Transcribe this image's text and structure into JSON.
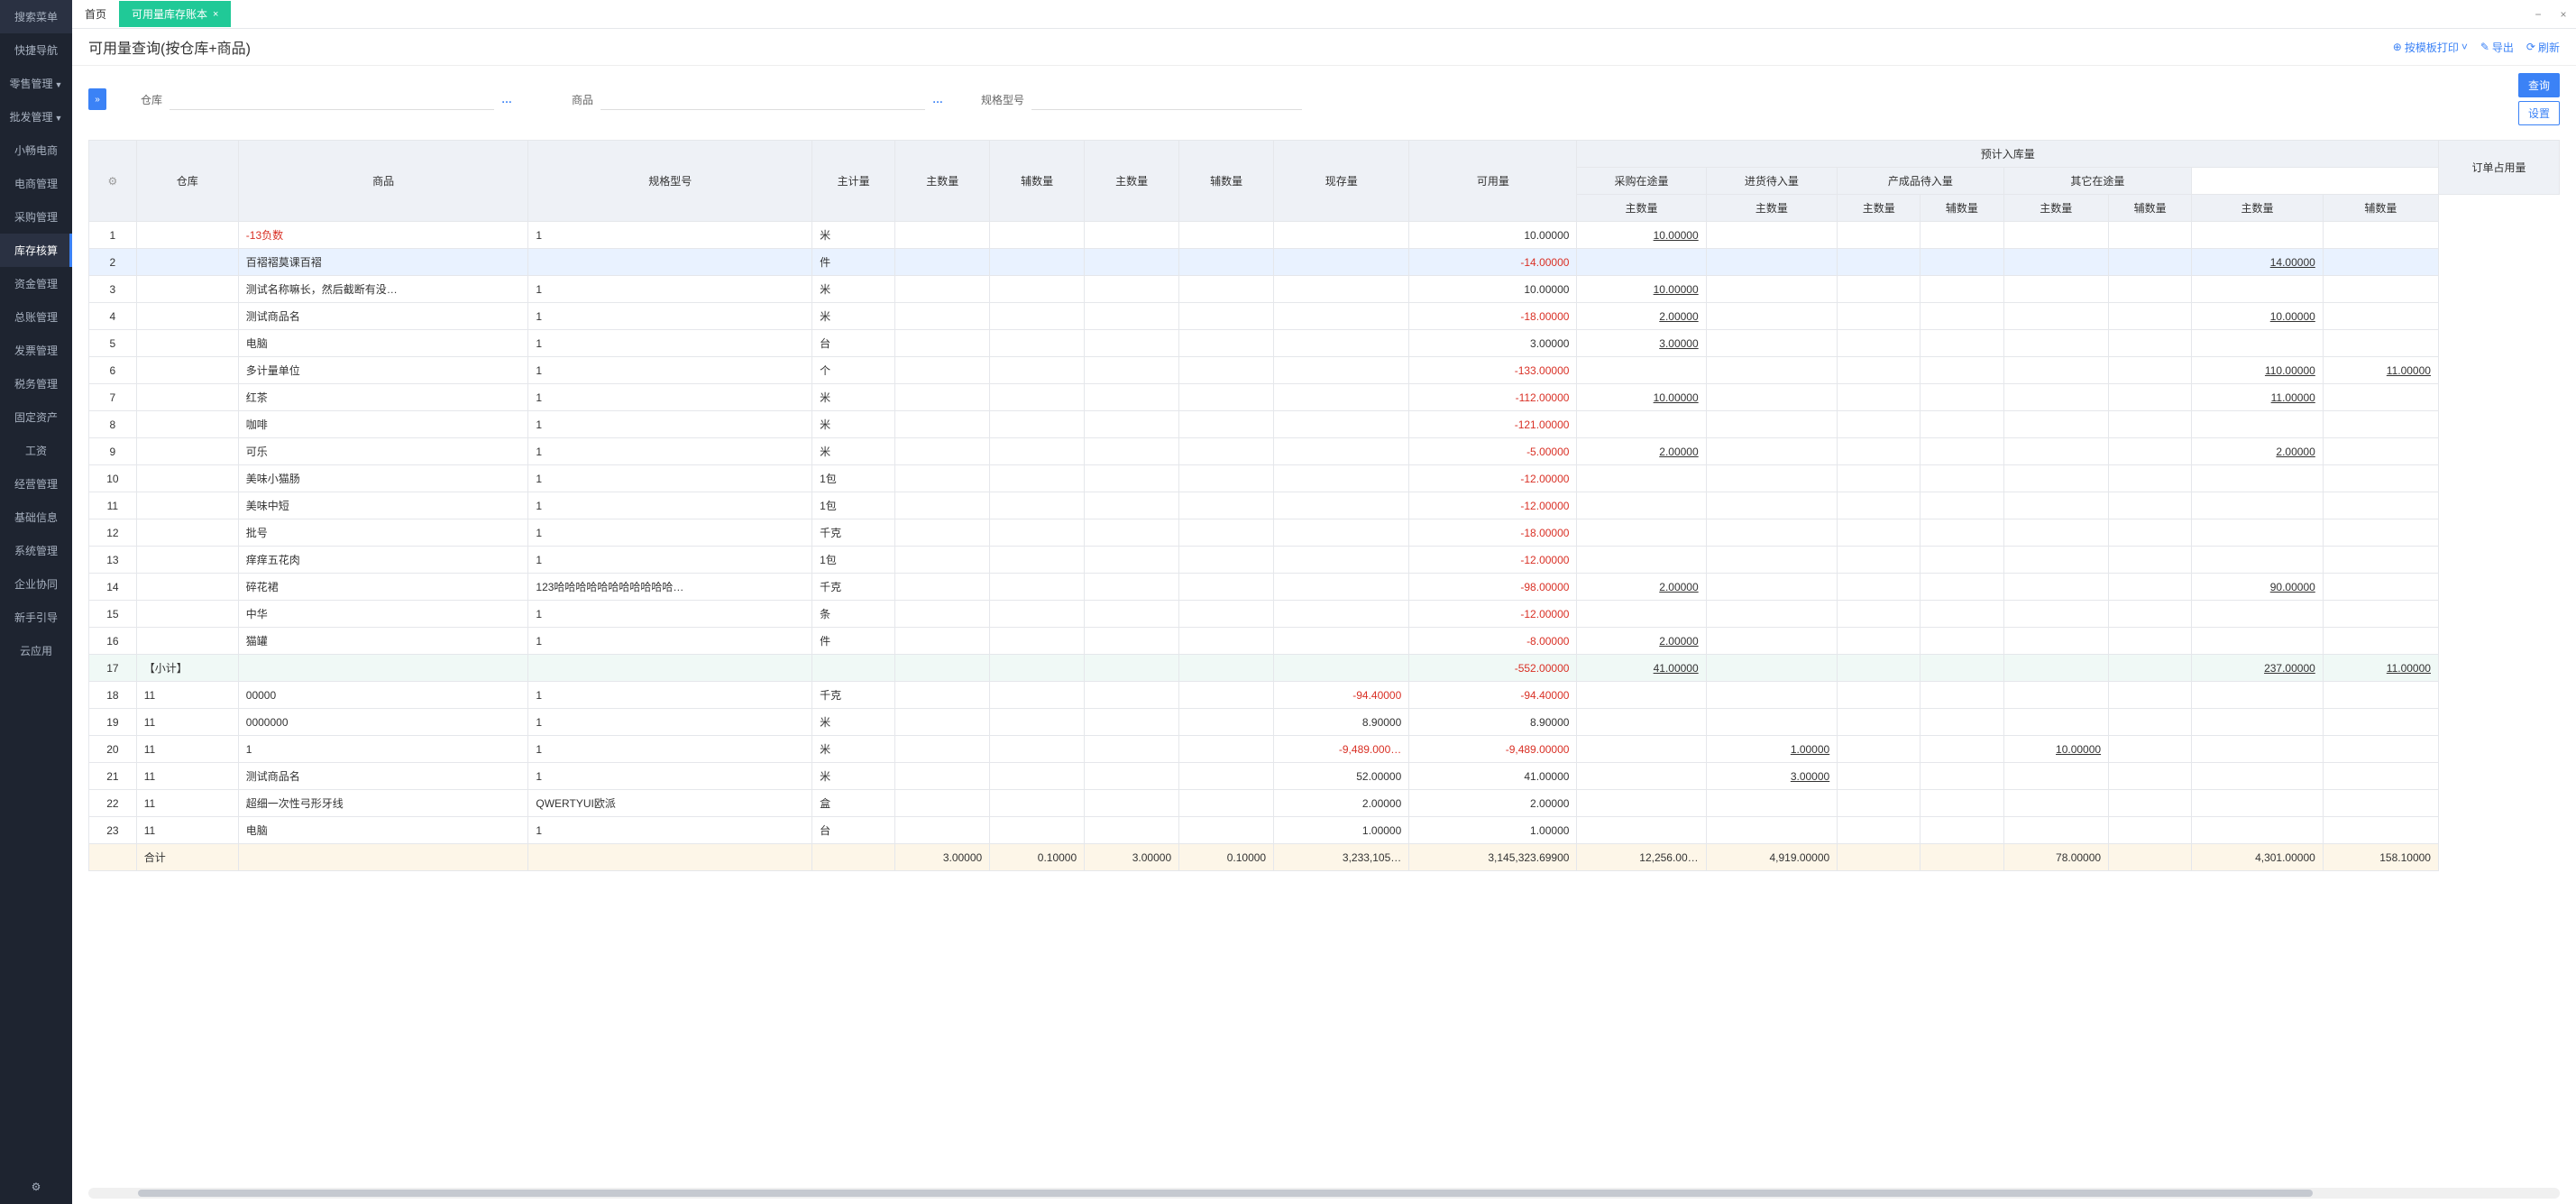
{
  "sidebar": {
    "items": [
      {
        "label": "搜索菜单"
      },
      {
        "label": "快捷导航"
      },
      {
        "label": "零售管理",
        "arrow": true
      },
      {
        "label": "批发管理",
        "arrow": true
      },
      {
        "label": "小畅电商"
      },
      {
        "label": "电商管理"
      },
      {
        "label": "采购管理"
      },
      {
        "label": "库存核算",
        "active": true
      },
      {
        "label": "资金管理"
      },
      {
        "label": "总账管理"
      },
      {
        "label": "发票管理"
      },
      {
        "label": "税务管理"
      },
      {
        "label": "固定资产"
      },
      {
        "label": "工资"
      },
      {
        "label": "经营管理"
      },
      {
        "label": "基础信息"
      },
      {
        "label": "系统管理"
      },
      {
        "label": "企业协同"
      },
      {
        "label": "新手引导"
      },
      {
        "label": "云应用"
      }
    ]
  },
  "tabs": {
    "home": "首页",
    "active": "可用量库存账本"
  },
  "header": {
    "title": "可用量查询(按仓库+商品)",
    "print": "按模板打印",
    "export": "导出",
    "refresh": "刷新"
  },
  "filters": {
    "warehouse": "仓库",
    "product": "商品",
    "spec": "规格型号",
    "query": "查询",
    "settings": "设置"
  },
  "table": {
    "group_predict": "预计入库量",
    "cols": [
      "仓库",
      "商品",
      "规格型号",
      "主计量",
      "主数量",
      "辅数量",
      "主数量",
      "辅数量",
      "现存量",
      "可用量",
      "采购在途量",
      "进货待入量",
      "产成品待入量",
      "其它在途量",
      "订单占用量"
    ],
    "subcols": [
      "主数量",
      "主数量",
      "主数量",
      "辅数量",
      "主数量",
      "辅数量",
      "主数量",
      "辅数量"
    ],
    "rows": [
      {
        "n": "1",
        "prod": "-13负数",
        "prod_neg": true,
        "spec": "1",
        "unit": "米",
        "avail": "10.00000",
        "c1": "10.00000"
      },
      {
        "n": "2",
        "prod": "百褶褶莫课百褶",
        "spec": "",
        "unit": "件",
        "avail": "-14.00000",
        "avail_neg": true,
        "ord": "14.00000",
        "hl": true
      },
      {
        "n": "3",
        "prod": "测试名称嘛长，然后截断有没…",
        "spec": "1",
        "unit": "米",
        "avail": "10.00000",
        "c1": "10.00000"
      },
      {
        "n": "4",
        "prod": "测试商品名",
        "spec": "1",
        "unit": "米",
        "avail": "-18.00000",
        "avail_neg": true,
        "c1": "2.00000",
        "ord": "10.00000"
      },
      {
        "n": "5",
        "prod": "电脑",
        "spec": "1",
        "unit": "台",
        "avail": "3.00000",
        "c1": "3.00000"
      },
      {
        "n": "6",
        "prod": "多计量单位",
        "spec": "1",
        "unit": "个",
        "avail": "-133.00000",
        "avail_neg": true,
        "ord": "110.00000",
        "ord2": "11.00000"
      },
      {
        "n": "7",
        "prod": "红茶",
        "spec": "1",
        "unit": "米",
        "avail": "-112.00000",
        "avail_neg": true,
        "c1": "10.00000",
        "ord": "11.00000"
      },
      {
        "n": "8",
        "prod": "咖啡",
        "spec": "1",
        "unit": "米",
        "avail": "-121.00000",
        "avail_neg": true
      },
      {
        "n": "9",
        "prod": "可乐",
        "spec": "1",
        "unit": "米",
        "avail": "-5.00000",
        "avail_neg": true,
        "c1": "2.00000",
        "ord": "2.00000"
      },
      {
        "n": "10",
        "prod": "美味小猫肠",
        "spec": "1",
        "unit": "1包",
        "avail": "-12.00000",
        "avail_neg": true
      },
      {
        "n": "11",
        "prod": "美味中短",
        "spec": "1",
        "unit": "1包",
        "avail": "-12.00000",
        "avail_neg": true
      },
      {
        "n": "12",
        "prod": "批号",
        "spec": "1",
        "unit": "千克",
        "avail": "-18.00000",
        "avail_neg": true
      },
      {
        "n": "13",
        "prod": "痒痒五花肉",
        "spec": "1",
        "unit": "1包",
        "avail": "-12.00000",
        "avail_neg": true
      },
      {
        "n": "14",
        "prod": "碎花裙",
        "spec": "123哈哈哈哈哈哈哈哈哈哈哈…",
        "unit": "千克",
        "avail": "-98.00000",
        "avail_neg": true,
        "c1": "2.00000",
        "ord": "90.00000"
      },
      {
        "n": "15",
        "prod": "中华",
        "spec": "1",
        "unit": "条",
        "avail": "-12.00000",
        "avail_neg": true
      },
      {
        "n": "16",
        "prod": "猫罐",
        "spec": "1",
        "unit": "件",
        "avail": "-8.00000",
        "avail_neg": true,
        "c1": "2.00000"
      },
      {
        "n": "17",
        "wh": "【小计】",
        "avail": "-552.00000",
        "avail_neg": true,
        "c1": "41.00000",
        "ord": "237.00000",
        "ord2": "11.00000",
        "sub": true
      },
      {
        "n": "18",
        "wh": "11",
        "prod": "00000",
        "spec": "1",
        "unit": "千克",
        "stock": "-94.40000",
        "stock_neg": true,
        "avail": "-94.40000",
        "avail_neg": true
      },
      {
        "n": "19",
        "wh": "11",
        "prod": "0000000",
        "spec": "1",
        "unit": "米",
        "stock": "8.90000",
        "avail": "8.90000"
      },
      {
        "n": "20",
        "wh": "11",
        "prod": "1",
        "spec": "1",
        "unit": "米",
        "stock": "-9,489.000…",
        "stock_neg": true,
        "avail": "-9,489.00000",
        "avail_neg": true,
        "c2": "1.00000",
        "c3": "10.00000"
      },
      {
        "n": "21",
        "wh": "11",
        "prod": "测试商品名",
        "spec": "1",
        "unit": "米",
        "stock": "52.00000",
        "avail": "41.00000",
        "c2": "3.00000"
      },
      {
        "n": "22",
        "wh": "11",
        "prod": "超细一次性弓形牙线",
        "spec": "QWERTYUI欧派",
        "unit": "盒",
        "stock": "2.00000",
        "avail": "2.00000"
      },
      {
        "n": "23",
        "wh": "11",
        "prod": "电脑",
        "spec": "1",
        "unit": "台",
        "stock": "1.00000",
        "avail": "1.00000"
      }
    ],
    "total": {
      "label": "合计",
      "v1": "3.00000",
      "v2": "0.10000",
      "v3": "3.00000",
      "v4": "0.10000",
      "v5": "3,233,105…",
      "v6": "3,145,323.69900",
      "v7": "12,256.00…",
      "v8": "4,919.00000",
      "v9": "78.00000",
      "v10": "4,301.00000",
      "v11": "158.10000"
    }
  }
}
